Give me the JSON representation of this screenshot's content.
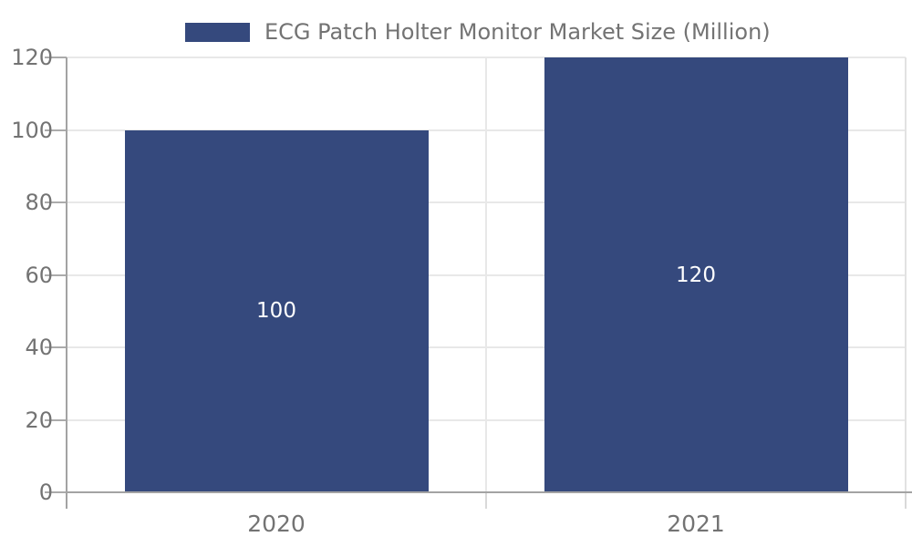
{
  "legend": {
    "label": "ECG Patch Holter Monitor Market Size (Million)"
  },
  "chart_data": {
    "type": "bar",
    "title": "ECG Patch Holter Monitor Market Size (Million)",
    "categories": [
      "2020",
      "2021"
    ],
    "values": [
      100,
      120
    ],
    "bar_labels": [
      "100",
      "120"
    ],
    "series": [
      {
        "name": "ECG Patch Holter Monitor Market Size (Million)",
        "values": [
          100,
          120
        ]
      }
    ],
    "xlabel": "",
    "ylabel": "",
    "ylim": [
      0,
      120
    ],
    "yticks": [
      0,
      20,
      40,
      60,
      80,
      100,
      120
    ],
    "grid": true,
    "legend_position": "top-center",
    "colors": {
      "bar": "#35497D",
      "bar_label_text": "#FFFFFF",
      "axis_text": "#737373",
      "grid_line": "#E8E8E8",
      "right_spine": "#E2E2E2",
      "axis_line": "#A3A3A3",
      "tick_line": "#ABABAB",
      "boundary_tick": "#D9D9D9",
      "background": "#FFFFFF"
    }
  }
}
